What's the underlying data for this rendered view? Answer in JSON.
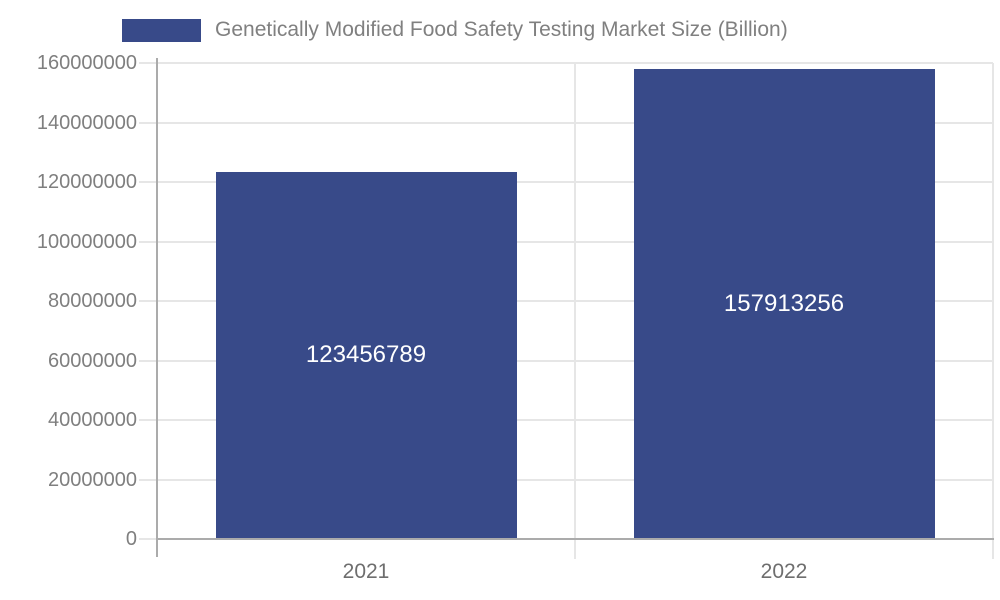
{
  "legend": {
    "label": "Genetically Modified Food Safety Testing Market Size (Billion)"
  },
  "chart_data": {
    "type": "bar",
    "title": "Genetically Modified Food Safety Testing Market Size (Billion)",
    "categories": [
      "2021",
      "2022"
    ],
    "values": [
      123456789,
      157913256
    ],
    "value_labels": [
      "123456789",
      "157913256"
    ],
    "ylim": [
      0,
      160000000
    ],
    "yticks": [
      0,
      20000000,
      40000000,
      60000000,
      80000000,
      100000000,
      120000000,
      140000000,
      160000000
    ],
    "ytick_labels": [
      "0",
      "20000000",
      "40000000",
      "60000000",
      "80000000",
      "100000000",
      "120000000",
      "140000000",
      "160000000"
    ],
    "grid": true,
    "legend_position": "top-left",
    "colors": {
      "bar": "#384a89",
      "grid": "#e6e6e6",
      "axis": "#ababab",
      "tick_text": "#7f7f7f",
      "category_text": "#6e6e6e",
      "title_text": "#808080",
      "bar_label_text": "#ffffff",
      "background": "#ffffff"
    }
  }
}
